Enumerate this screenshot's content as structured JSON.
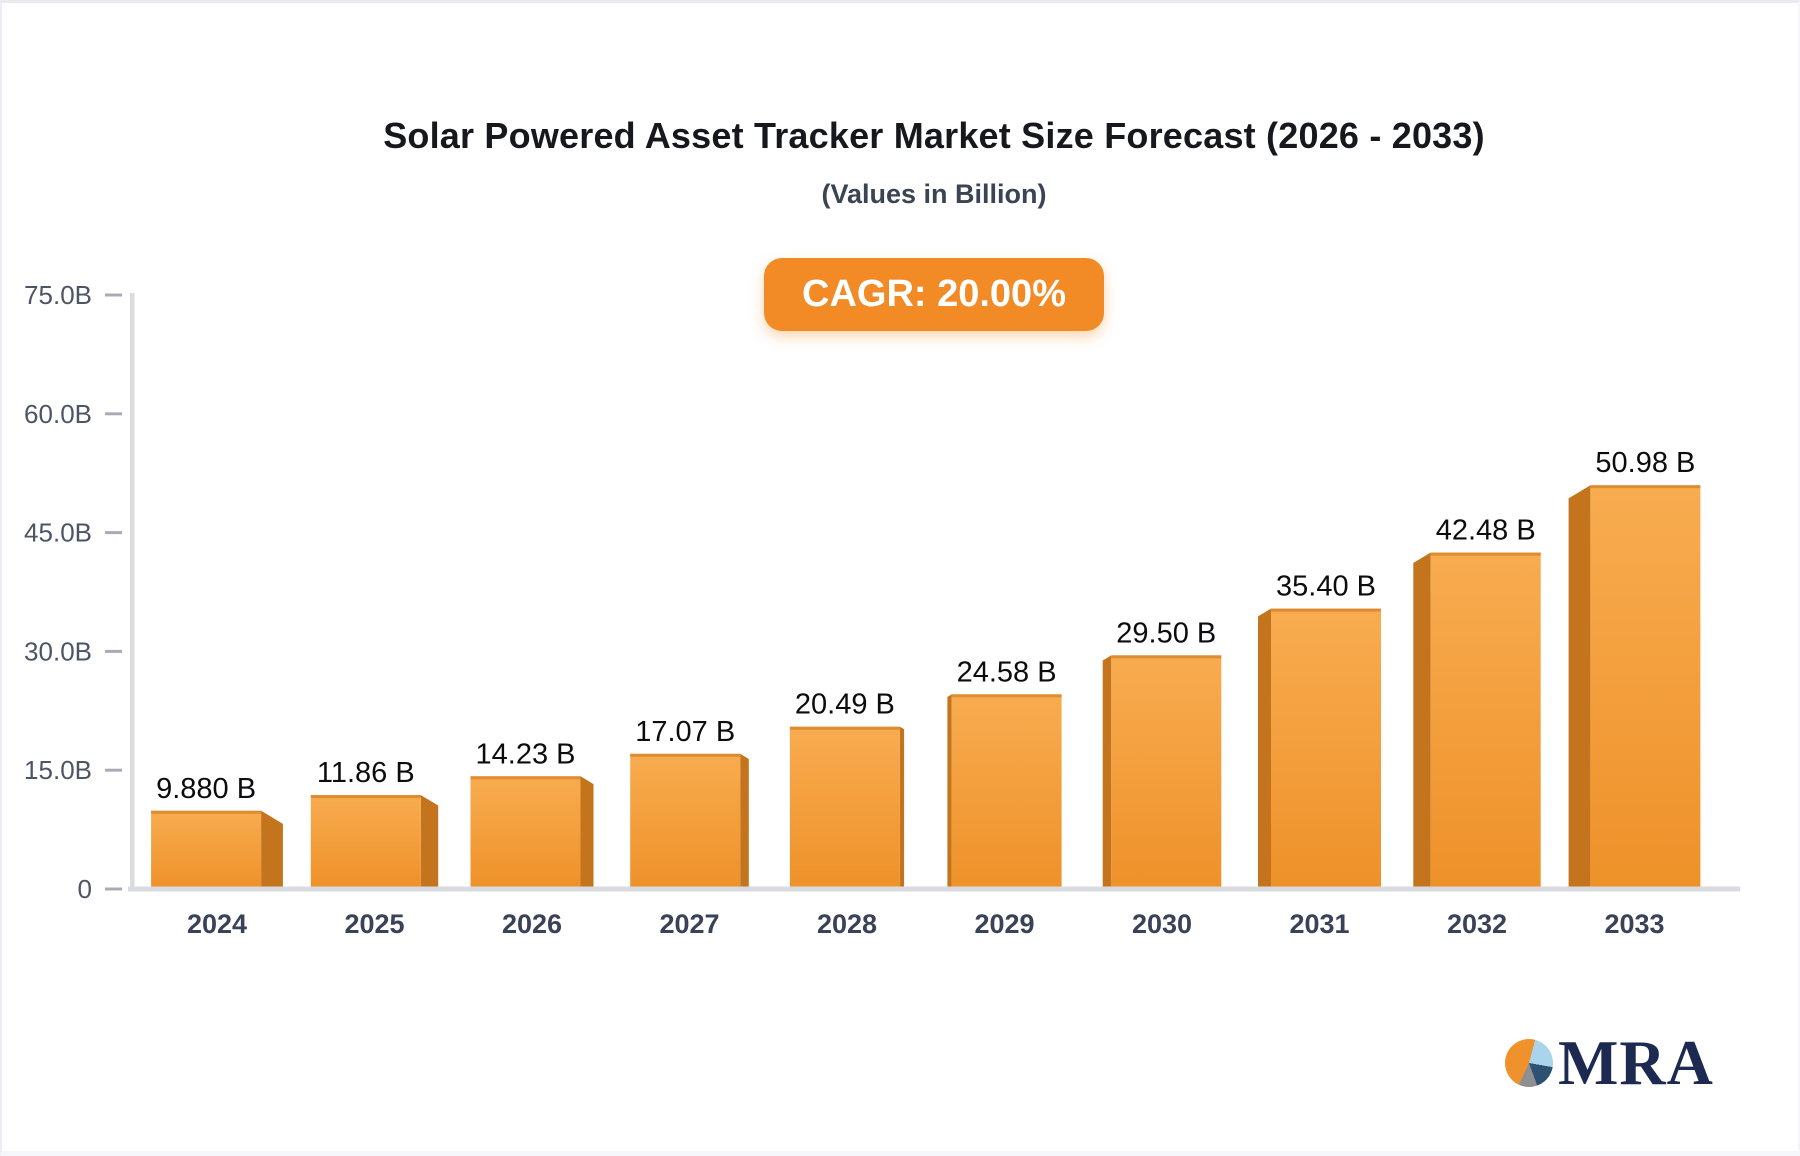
{
  "header": {
    "title": "Solar Powered Asset Tracker Market Size Forecast (2026 - 2033)",
    "subtitle": "(Values in Billion)",
    "cagr_badge": "CAGR: 20.00%"
  },
  "brand": {
    "name": "MRA",
    "pie_icon_colors": {
      "orange": "#F0922B",
      "light_blue": "#A9D4EB",
      "navy": "#2C5173",
      "gray": "#8F8F91"
    },
    "name_color": "#1C2A52"
  },
  "chart_data": {
    "type": "bar",
    "style": "3d-perspective-bars",
    "title": "Solar Powered Asset Tracker Market Size Forecast (2026 - 2033)",
    "subtitle": "(Values in Billion)",
    "annotation": "CAGR: 20.00%",
    "categories": [
      "2024",
      "2025",
      "2026",
      "2027",
      "2028",
      "2029",
      "2030",
      "2031",
      "2032",
      "2033"
    ],
    "values": [
      9.88,
      11.86,
      14.23,
      17.07,
      20.49,
      24.58,
      29.5,
      35.4,
      42.48,
      50.98
    ],
    "value_labels": [
      "9.880 B",
      "11.86 B",
      "14.23 B",
      "17.07 B",
      "20.49 B",
      "24.58 B",
      "29.50 B",
      "35.40 B",
      "42.48 B",
      "50.98 B"
    ],
    "xlabel": "",
    "ylabel": "",
    "ylim": [
      0,
      75
    ],
    "y_tick_values": [
      0,
      15,
      30,
      45,
      60,
      75
    ],
    "y_tick_labels": [
      "0",
      "15.0B",
      "30.0B",
      "45.0B",
      "60.0B",
      "75.0B"
    ],
    "grid": false,
    "legend": null,
    "colors": {
      "bar_face_top": "#F8AC50",
      "bar_face_bottom": "#EE9129",
      "bar_side": "#C3741D",
      "bar_top_edge": "#DE8C31",
      "axis_line": "#D9DBE1",
      "tick_dash": "#A7ACB6",
      "y_tick_text": "#4D5565",
      "x_tick_text": "#3A4258",
      "value_text": "#0C0C0E"
    }
  }
}
